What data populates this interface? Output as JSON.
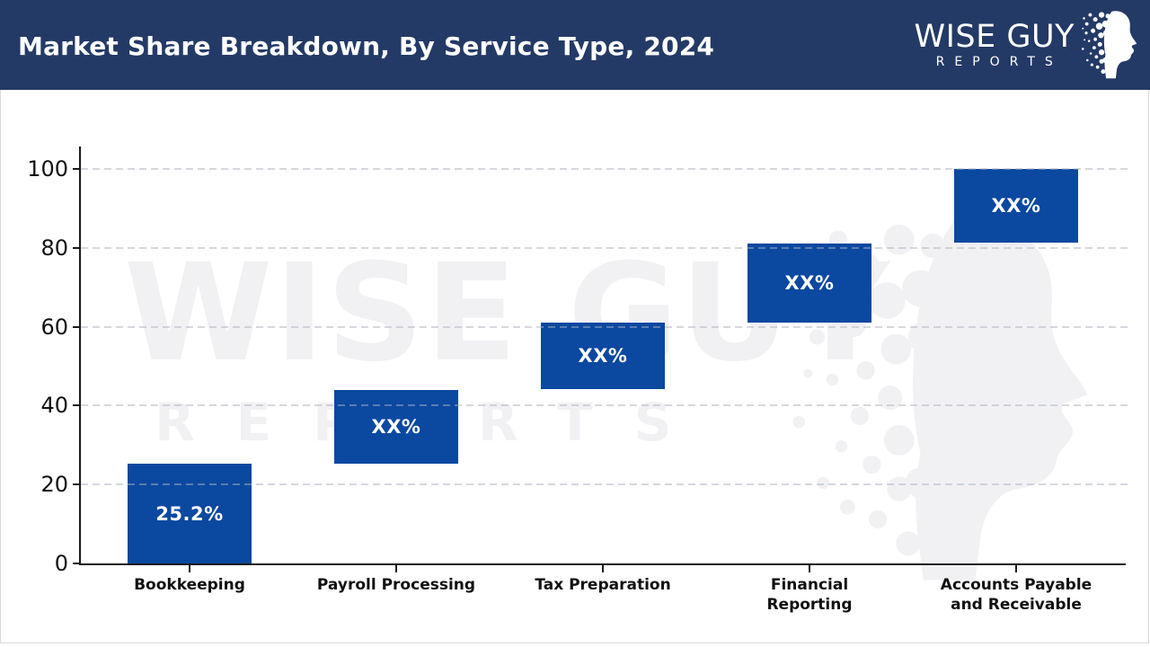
{
  "header": {
    "title": "Market Share Breakdown, By Service Type, 2024",
    "logo": {
      "wordmark": "WISE GUY",
      "subtext": "REPORTS"
    }
  },
  "watermark": {
    "wordmark": "WISE GUY",
    "subtext": "REPORTS"
  },
  "colors": {
    "header_bg": "#243A66",
    "header_text": "#FFFFFF",
    "bar_blue": "#0B48A0",
    "bar_label_text": "#FFFFFF",
    "axis_black": "#1A1A1A",
    "tick_text": "#111111",
    "gridline_rgba": "rgba(172,178,190,0.5)",
    "watermark_gray": "#F1F1F4",
    "content_border": "#D9D9D9"
  },
  "chart_data": {
    "type": "bar",
    "subtype": "waterfall",
    "title": "Market Share Breakdown, By Service Type, 2024",
    "xlabel": "",
    "ylabel": "",
    "ylim": [
      0,
      105
    ],
    "y_ticks": [
      0,
      20,
      40,
      60,
      80,
      100
    ],
    "grid": "horizontal-dashed",
    "legend": "none",
    "categories": [
      "Bookkeeping",
      "Payroll Processing",
      "Tax Preparation",
      "Financial Reporting",
      "Accounts Payable and Receivable"
    ],
    "category_label_lines": [
      [
        "Bookkeeping"
      ],
      [
        "Payroll Processing"
      ],
      [
        "Tax Preparation"
      ],
      [
        "Financial",
        "Reporting"
      ],
      [
        "Accounts Payable",
        "and Receivable"
      ]
    ],
    "segments": [
      {
        "category": "Bookkeeping",
        "start": 0,
        "end": 25.2,
        "value_label": "25.2%"
      },
      {
        "category": "Payroll Processing",
        "start": 25.2,
        "end": 44.0,
        "value_label": "XX%"
      },
      {
        "category": "Tax Preparation",
        "start": 44.2,
        "end": 61.0,
        "value_label": "XX%"
      },
      {
        "category": "Financial Reporting",
        "start": 61.0,
        "end": 81.2,
        "value_label": "XX%"
      },
      {
        "category": "Accounts Payable and Receivable",
        "start": 81.4,
        "end": 100.0,
        "value_label": "XX%"
      }
    ]
  }
}
